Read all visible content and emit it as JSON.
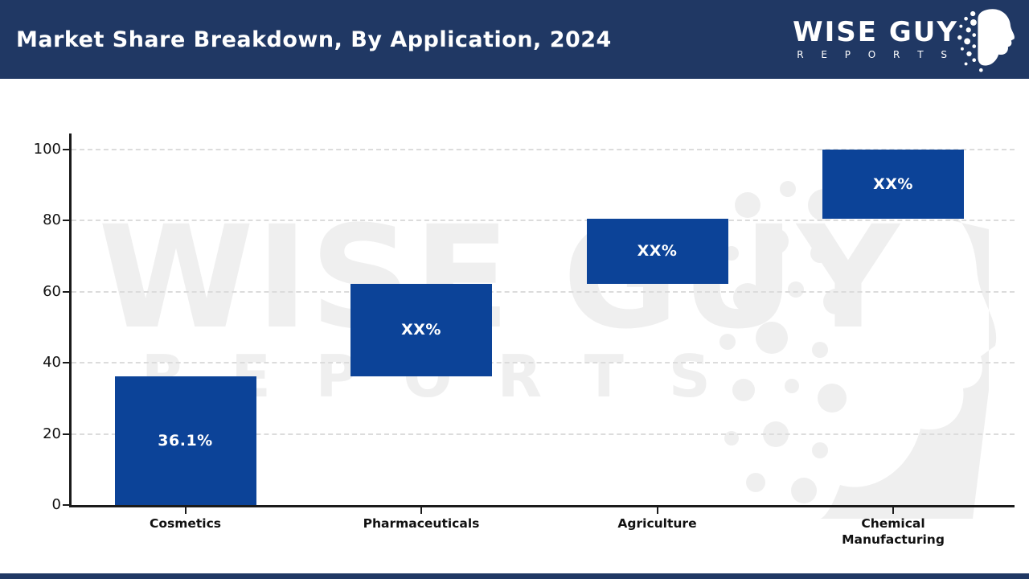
{
  "header": {
    "title": "Market Share Breakdown, By Application, 2024",
    "logo": {
      "wordmark": "WISE GUY",
      "subtext": "R E P O R T S"
    }
  },
  "watermark": {
    "wordmark": "WISE GUY",
    "subtext": "REPORTS"
  },
  "colors": {
    "header_bg": "#203864",
    "bar": "#0c4398",
    "grid": "#dcdcdc",
    "axis": "#1a1a1a",
    "watermark": "#efefef",
    "bar_label": "#ffffff"
  },
  "chart_data": {
    "type": "bar",
    "subtype": "waterfall-floating-bars",
    "title": "Market Share Breakdown, By Application, 2024",
    "categories": [
      "Cosmetics",
      "Pharmaceuticals",
      "Agriculture",
      "Chemical Manufacturing"
    ],
    "segments": [
      {
        "category": "Cosmetics",
        "start": 0,
        "end": 36.1,
        "label": "36.1%"
      },
      {
        "category": "Pharmaceuticals",
        "start": 36.1,
        "end": 62.2,
        "label": "XX%"
      },
      {
        "category": "Agriculture",
        "start": 62.2,
        "end": 80.5,
        "label": "XX%"
      },
      {
        "category": "Chemical Manufacturing",
        "start": 80.5,
        "end": 100,
        "label": "XX%"
      }
    ],
    "yticks": [
      0,
      20,
      40,
      60,
      80,
      100
    ],
    "ylim": [
      0,
      105
    ],
    "xlabel": "",
    "ylabel": "",
    "grid": "horizontal-dashed",
    "legend": "none",
    "bar_color": "#0c4398",
    "value_label_color": "#ffffff"
  }
}
